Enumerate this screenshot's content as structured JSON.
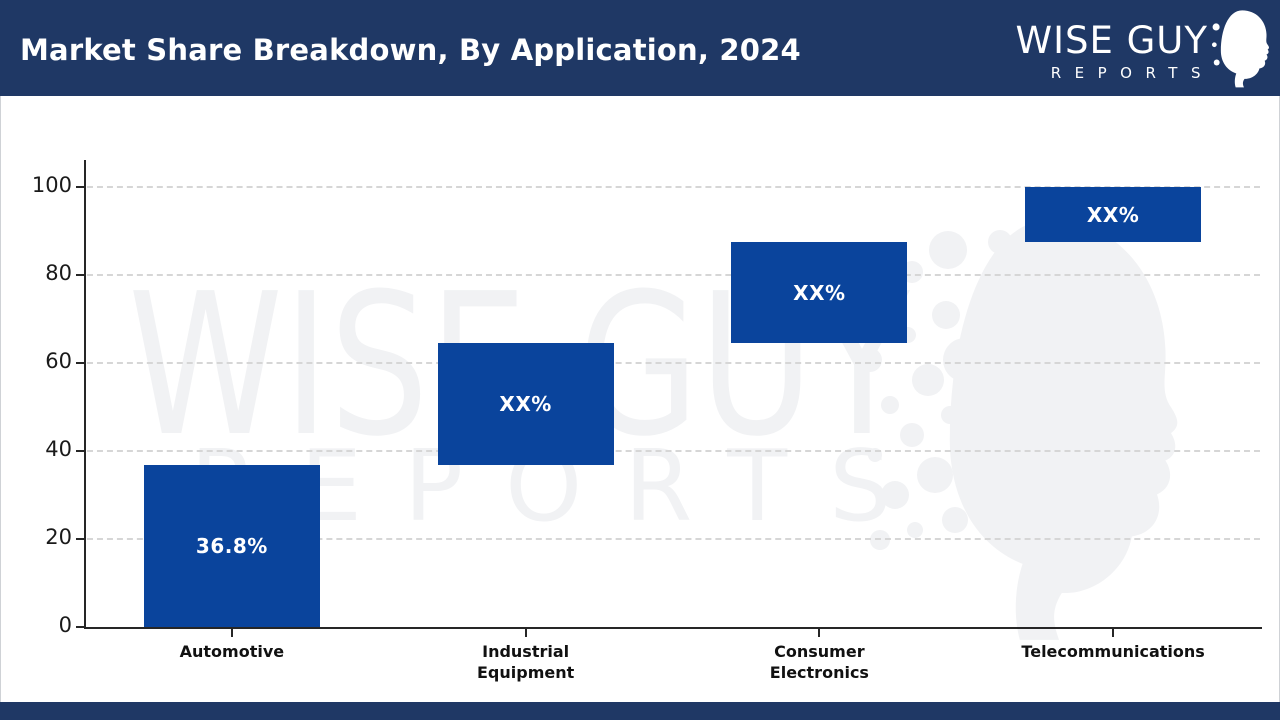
{
  "header": {
    "title": "Market Share Breakdown, By Application, 2024",
    "brand": {
      "line1": "WISE GUY",
      "line2": "REPORTS"
    }
  },
  "watermark": {
    "line1": "WISE GUY",
    "line2": "REPORTS"
  },
  "chart_data": {
    "type": "bar",
    "variant": "waterfall",
    "title": "Market Share Breakdown, By Application, 2024",
    "categories": [
      "Automotive",
      "Industrial\nEquipment",
      "Consumer\nElectronics",
      "Telecommunications"
    ],
    "segments": [
      {
        "category": "Automotive",
        "start": 0,
        "end": 36.8,
        "value": 36.8,
        "label": "36.8%"
      },
      {
        "category": "Industrial Equipment",
        "start": 36.8,
        "end": 64.5,
        "value": 27.7,
        "label": "XX%"
      },
      {
        "category": "Consumer Electronics",
        "start": 64.5,
        "end": 87.5,
        "value": 23.0,
        "label": "XX%"
      },
      {
        "category": "Telecommunications",
        "start": 87.5,
        "end": 100,
        "value": 12.5,
        "label": "XX%"
      }
    ],
    "yticks": [
      0,
      20,
      40,
      60,
      80,
      100
    ],
    "ylim": [
      0,
      105
    ],
    "xlabel": "",
    "ylabel": "",
    "grid": {
      "axis": "y",
      "style": "dashed"
    },
    "legend": "none"
  },
  "colors": {
    "header_bg": "#1f3865",
    "footer_bg": "#1f3865",
    "bar": "#0a449c",
    "axis": "#262626",
    "grid": "#d6d6d6",
    "watermark": "#f1f2f4",
    "title_text": "#ffffff",
    "bar_label_text": "#ffffff"
  }
}
